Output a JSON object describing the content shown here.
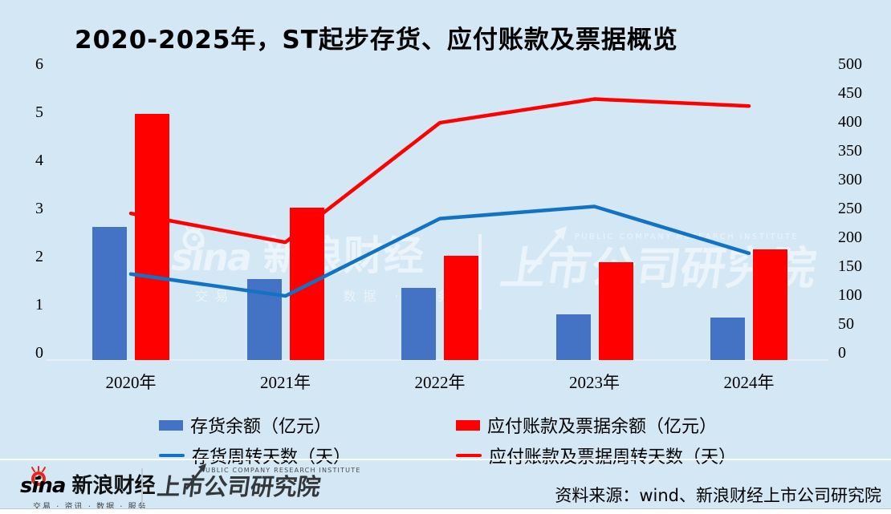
{
  "title": "2020-2025年，ST起步存货、应付账款及票据概览",
  "chart_data": {
    "type": "combo-bar-line",
    "categories": [
      "2020年",
      "2021年",
      "2022年",
      "2023年",
      "2024年"
    ],
    "series": [
      {
        "name": "存货余额（亿元）",
        "type": "bar",
        "axis": "left",
        "color": "#4472c4",
        "values": [
          2.76,
          1.68,
          1.5,
          0.95,
          0.88
        ]
      },
      {
        "name": "应付账款及票据余额（亿元）",
        "type": "bar",
        "axis": "left",
        "color": "#fe0000",
        "values": [
          5.11,
          3.16,
          2.16,
          2.03,
          2.3
        ]
      },
      {
        "name": "存货周转天数（天）",
        "type": "line",
        "axis": "right",
        "color": "#1273c4",
        "values": [
          149,
          111,
          245,
          266,
          185
        ]
      },
      {
        "name": "应付账款及票据周转天数（天）",
        "type": "line",
        "axis": "right",
        "color": "#fe0000",
        "values": [
          254,
          204,
          411,
          452,
          440
        ]
      }
    ],
    "left_axis": {
      "min": 0,
      "max": 6,
      "ticks": [
        0,
        1,
        2,
        3,
        4,
        5,
        6
      ]
    },
    "right_axis": {
      "min": 0,
      "max": 500,
      "ticks": [
        0,
        50,
        100,
        150,
        200,
        250,
        300,
        350,
        400,
        450,
        500
      ]
    },
    "grid": false,
    "legend_position": "bottom"
  },
  "watermark": {
    "sina": "sina",
    "brand": "新浪财经",
    "tagline": "交易 · 资讯 · 数据 · 服务",
    "institute_en": "PUBLIC COMPANY RESEARCH INSTITUTE",
    "institute": "上市公司研究院"
  },
  "footer": {
    "sina": "sina",
    "brand": "新浪财经",
    "tagline": "交易 · 资讯 · 数据 · 服务",
    "institute_en": "PUBLIC COMPANY RESEARCH INSTITUTE",
    "institute": "上市公司研究院",
    "source": "资料来源：wind、新浪财经上市公司研究院"
  },
  "colors": {
    "background": "#d3e7f4",
    "bar_blue": "#4472c4",
    "bar_red": "#fe0000",
    "line_blue": "#1273c4",
    "line_red": "#fe0000",
    "title_text": "#000000"
  }
}
